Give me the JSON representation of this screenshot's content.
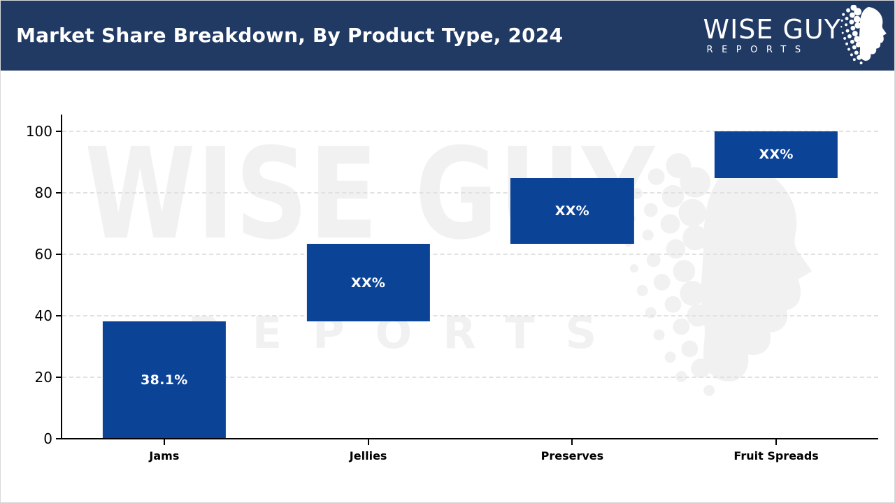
{
  "page": {
    "background": "#ffffff",
    "border_color": "#d9d9d9"
  },
  "header": {
    "title": "Market Share Breakdown, By Product Type, 2024",
    "bg_color": "#213a64",
    "text_color": "#ffffff",
    "logo": {
      "wordmark": "WISE GUY",
      "subtext": "REPORTS"
    }
  },
  "watermark": {
    "line1": "WISE GUY",
    "line2": "REPORTS"
  },
  "chart_data": {
    "type": "bar",
    "subtype": "waterfall",
    "title": "Market Share Breakdown, By Product Type, 2024",
    "categories": [
      "Jams",
      "Jellies",
      "Preserves",
      "Fruit Spreads"
    ],
    "segments": [
      {
        "category": "Jams",
        "start": 0,
        "end": 38.1,
        "size": 38.1,
        "label": "38.1%"
      },
      {
        "category": "Jellies",
        "start": 38.1,
        "end": 63.5,
        "size": 25.4,
        "label": "XX%"
      },
      {
        "category": "Preserves",
        "start": 63.5,
        "end": 84.8,
        "size": 21.3,
        "label": "XX%"
      },
      {
        "category": "Fruit Spreads",
        "start": 84.8,
        "end": 100,
        "size": 15.2,
        "label": "XX%"
      }
    ],
    "yticks": [
      0,
      20,
      40,
      60,
      80,
      100
    ],
    "ylim": [
      0,
      105
    ],
    "xlabel": "",
    "ylabel": "",
    "grid": "horizontal-dashed",
    "legend": "none",
    "bar_color": "#0b4397",
    "bar_label_color": "#ffffff",
    "axis_color": "#000000",
    "gridline_color": "#e1e1e1"
  }
}
